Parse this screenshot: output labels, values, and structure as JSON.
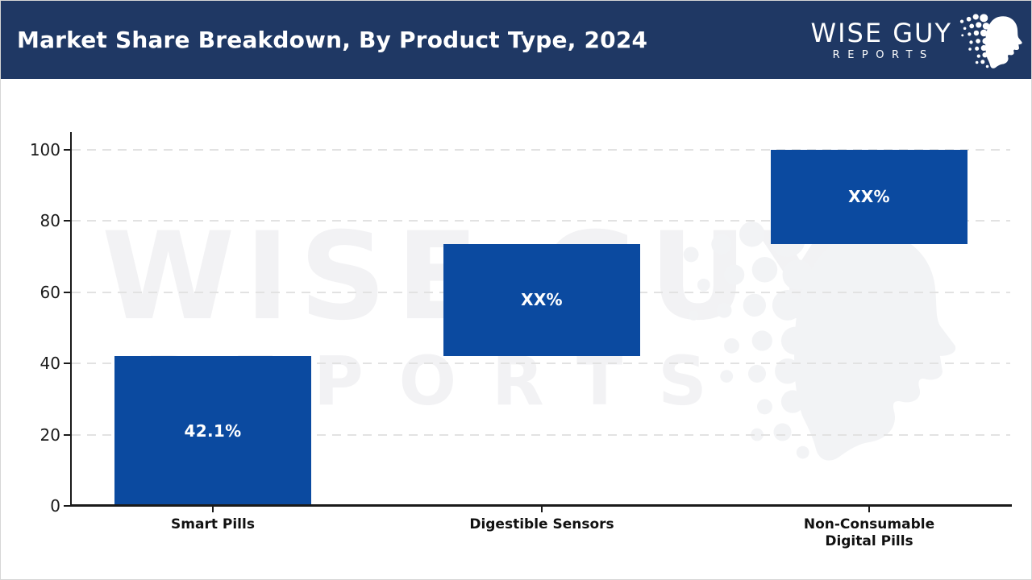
{
  "header": {
    "title": "Market Share Breakdown, By Product Type, 2024",
    "bg_color": "#1f3864",
    "logo": {
      "line1": "WISE GUY",
      "line2": "REPORTS"
    }
  },
  "watermark": {
    "line1": "WISE GUY",
    "line2": "REPORTS"
  },
  "chart_data": {
    "type": "bar",
    "variant": "stacked_percentage_waterfall",
    "title": "Market Share Breakdown, By Product Type, 2024",
    "categories": [
      "Smart Pills",
      "Digestible Sensors",
      "Non-Consumable\nDigital Pills"
    ],
    "segments": [
      {
        "category": "Smart Pills",
        "label": "42.1%",
        "start": 0,
        "end": 42.1
      },
      {
        "category": "Digestible Sensors",
        "label": "XX%",
        "start": 42.1,
        "end": 73.6
      },
      {
        "category": "Non-Consumable Digital Pills",
        "label": "XX%",
        "start": 73.6,
        "end": 100
      }
    ],
    "ylim": [
      0,
      100
    ],
    "yticks": [
      0,
      20,
      40,
      60,
      80,
      100
    ],
    "grid": {
      "axis": "y",
      "style": "dashed",
      "color": "#e2e2e2"
    },
    "legend": "none",
    "bar_color": "#0b4aa0",
    "bar_label_color": "#ffffff",
    "axis_color": "#1a1a1a"
  }
}
